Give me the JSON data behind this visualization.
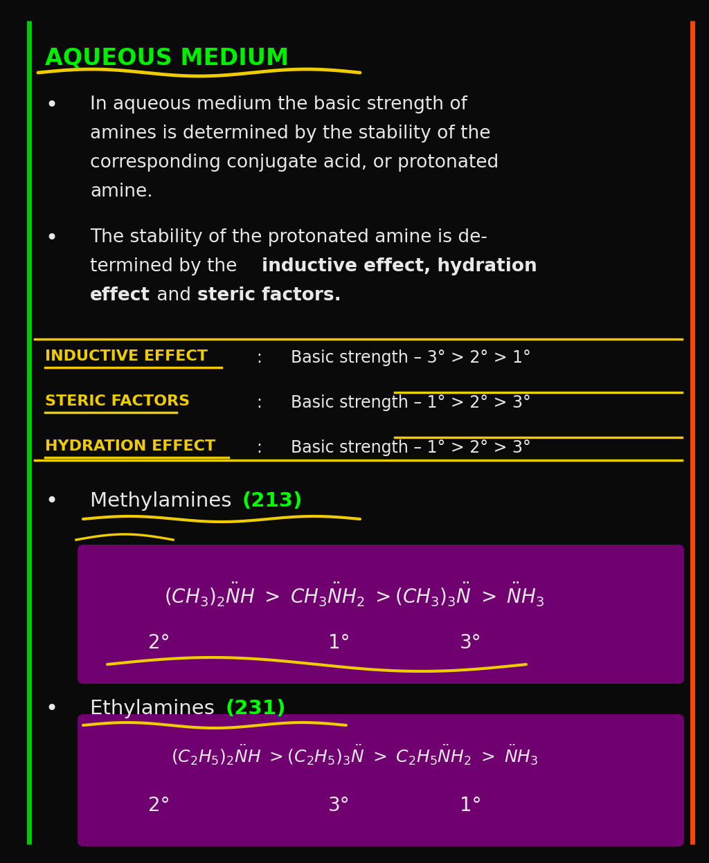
{
  "bg_color": "#0a0a0a",
  "title": "AQUEOUS MEDIUM",
  "title_color": "#00ee00",
  "left_border_color": "#00cc00",
  "right_border_color": "#ff4400",
  "yellow_color": "#eecc00",
  "white_color": "#e8e8e8",
  "green_num_color": "#00ff00",
  "purple_box_color": "#700070",
  "bullet1_lines": [
    "In aqueous medium the basic strength of",
    "amines is determined by the stability of the",
    "corresponding conjugate acid, or protonated",
    "amine."
  ],
  "bullet2_line1": "The stability of the protonated amine is de-",
  "bullet2_line2_normal": "termined by the ",
  "bullet2_line2_bold": "inductive effect, hydration",
  "bullet2_line3_bold1": "effect",
  "bullet2_line3_normal": " and ",
  "bullet2_line3_bold2": "steric factors.",
  "inductive_label": "INDUCTIVE EFFECT",
  "inductive_value": "Basic strength – 3° > 2° > 1°",
  "steric_label": "STERIC FACTORS",
  "steric_value": "Basic strength – 1° > 2° > 3°",
  "hydration_label": "HYDRATION EFFECT",
  "hydration_value": "Basic strength – 1° > 2° > 3°",
  "methyl_header_normal": "Methylamines ",
  "methyl_header_num": "(213)",
  "methyl_formula_text": "(CH₃)₂̈NH › CH₃̈NH₂ ›(CH₃)₃̈N › ̈NH₃",
  "methyl_2deg": "2°",
  "methyl_1deg": "1°",
  "methyl_3deg": "3°",
  "ethyl_header_normal": "Ethylamines ",
  "ethyl_header_num": "(231)",
  "ethyl_formula_text": "(C₂H₅)₂̈NH ›(C₂H₅)₃̈N › C₂H₅̈NH₂ › ̈NH₃",
  "ethyl_2deg": "2°",
  "ethyl_3deg": "3°",
  "ethyl_1deg": "1°"
}
